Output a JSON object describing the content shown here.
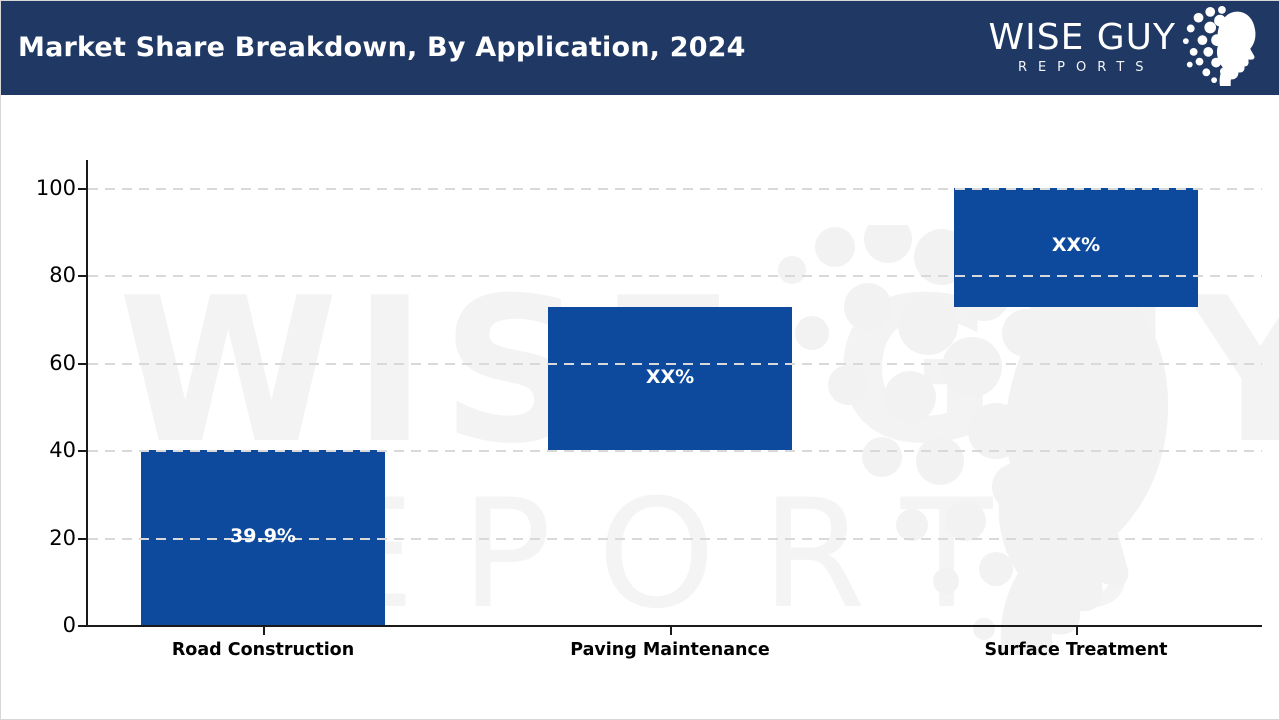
{
  "header": {
    "title": "Market Share Breakdown, By Application, 2024",
    "background_color": "#1f3864",
    "logo": {
      "line1": "WISE GUY",
      "line2": "REPORTS"
    }
  },
  "watermark": {
    "line1": "WISE GUY",
    "line2": "REPORTS"
  },
  "chart_data": {
    "type": "bar",
    "subtype": "waterfall",
    "title": "Market Share Breakdown, By Application, 2024",
    "xlabel": "",
    "ylabel": "",
    "ylim": [
      0,
      100
    ],
    "yticks": [
      0,
      20,
      40,
      60,
      80,
      100
    ],
    "grid": "horizontal dashed",
    "legend": "none",
    "bar_color": "#0d4a9e",
    "bar_label_color": "#ffffff",
    "categories": [
      "Road Construction",
      "Paving Maintenance",
      "Surface Treatment"
    ],
    "segments": [
      {
        "category": "Road Construction",
        "start": 0,
        "end": 39.9,
        "label": "39.9%"
      },
      {
        "category": "Paving Maintenance",
        "start": 39.9,
        "end": 72.7,
        "label": "XX%"
      },
      {
        "category": "Surface Treatment",
        "start": 72.7,
        "end": 100,
        "label": "XX%"
      }
    ]
  }
}
